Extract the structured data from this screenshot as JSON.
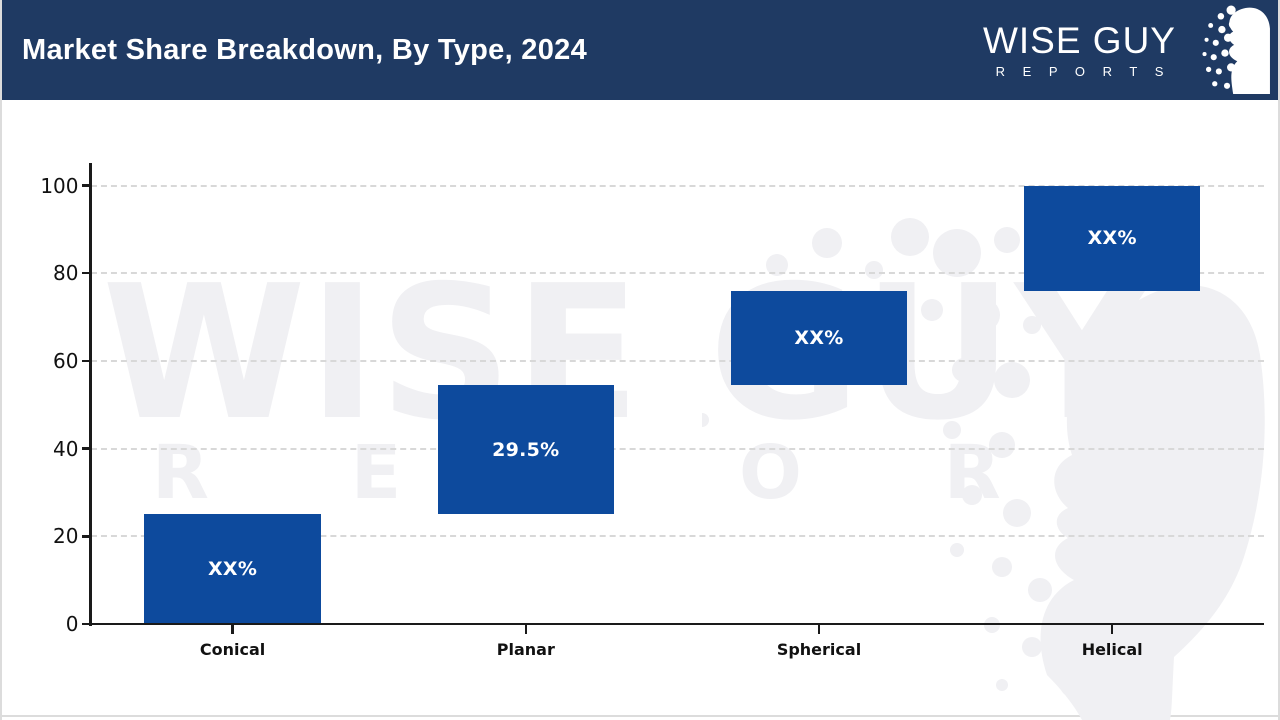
{
  "header": {
    "title": "Market Share Breakdown, By Type, 2024"
  },
  "logo": {
    "name_top": "WISE GUY",
    "name_bottom": "R E P O R T S"
  },
  "watermark": {
    "line1": "WISE GUY",
    "line2": "R E P O R T S"
  },
  "chart_data": {
    "type": "bar",
    "subtype": "waterfall",
    "title": "Market Share Breakdown, By Type, 2024",
    "categories": [
      "Conical",
      "Planar",
      "Spherical",
      "Helical"
    ],
    "series": [
      {
        "name": "Market Share",
        "segments": [
          {
            "category": "Conical",
            "start": 0,
            "end": 25,
            "label": "XX%"
          },
          {
            "category": "Planar",
            "start": 25,
            "end": 54.5,
            "label": "29.5%"
          },
          {
            "category": "Spherical",
            "start": 54.5,
            "end": 76,
            "label": "XX%"
          },
          {
            "category": "Helical",
            "start": 76,
            "end": 100,
            "label": "XX%"
          }
        ]
      }
    ],
    "xlabel": "",
    "ylabel": "",
    "ylim": [
      0,
      100
    ],
    "yticks": [
      0,
      20,
      40,
      60,
      80,
      100
    ],
    "grid": "horizontal-dashed",
    "legend": "none"
  },
  "colors": {
    "header_bg": "#1f3a63",
    "header_text": "#ffffff",
    "bar": "#0d4a9d",
    "bar_label": "#ffffff",
    "grid": "#d8d8d8",
    "axis": "#1a1a1a",
    "tick_label": "#111111",
    "watermark": "#f0f0f3"
  }
}
